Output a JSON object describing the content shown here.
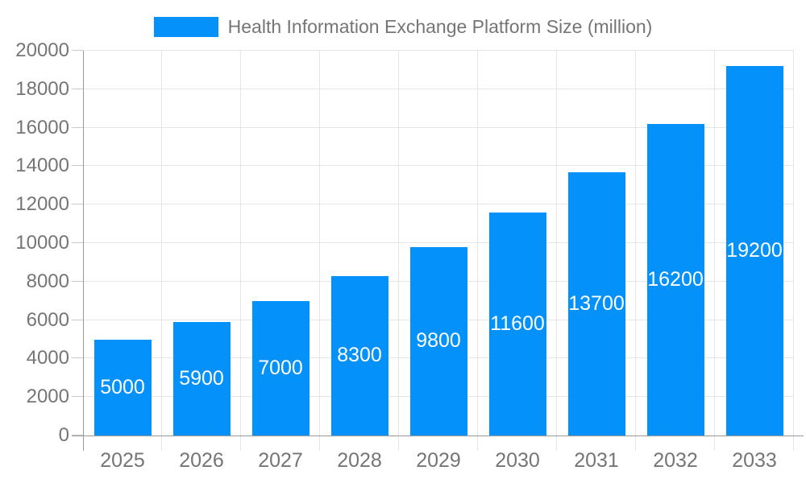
{
  "legend": {
    "label": "Health Information Exchange Platform Size (million)"
  },
  "chart_data": {
    "type": "bar",
    "title": "Health Information Exchange Platform Size (million)",
    "categories": [
      "2025",
      "2026",
      "2027",
      "2028",
      "2029",
      "2030",
      "2031",
      "2032",
      "2033"
    ],
    "values": [
      5000,
      5900,
      7000,
      8300,
      9800,
      11600,
      13700,
      16200,
      19200
    ],
    "xlabel": "",
    "ylabel": "",
    "ylim": [
      0,
      20000
    ],
    "yticks": [
      0,
      2000,
      4000,
      6000,
      8000,
      10000,
      12000,
      14000,
      16000,
      18000,
      20000
    ],
    "legend_position": "top-center",
    "grid": true,
    "value_label_placement": "centered-inside",
    "colors": {
      "bar": "#0591fa",
      "value_label": "#ffffff",
      "tick_label": "#757575",
      "gridline": "#e5e5e5",
      "axis": "#999999",
      "background": "#ffffff"
    }
  }
}
